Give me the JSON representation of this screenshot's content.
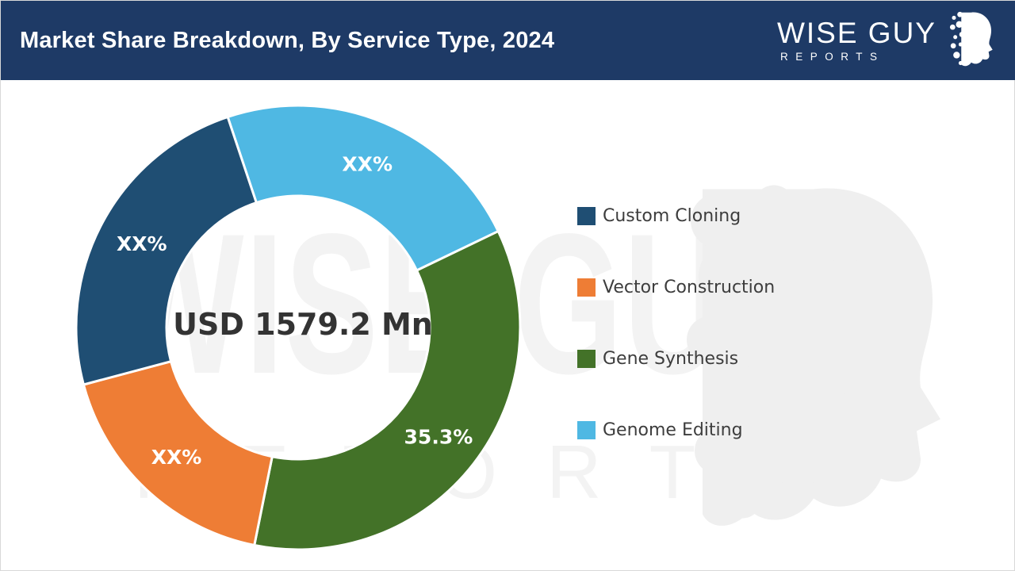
{
  "header": {
    "title": "Market Share Breakdown, By Service Type, 2024",
    "logo": {
      "line1": "WISE GUY",
      "line2": "REPORTS"
    }
  },
  "watermark": {
    "line1": "WISE GUY",
    "line2": "REPORTS"
  },
  "chart_data": {
    "type": "pie",
    "subtype": "donut",
    "title": "Market Share Breakdown, By Service Type, 2024",
    "center_label": "USD 1579.2 Mn",
    "start_angle_deg_clockwise_from_top": -18.5,
    "inner_radius_ratio": 0.59,
    "slices": [
      {
        "label": "Genome Editing",
        "display_label": "XX%",
        "value_pct": 23.0,
        "color": "#4FB8E3"
      },
      {
        "label": "Gene Synthesis",
        "display_label": "35.3%",
        "value_pct": 35.3,
        "color": "#437228"
      },
      {
        "label": "Vector Construction",
        "display_label": "XX%",
        "value_pct": 17.7,
        "color": "#EE7D35"
      },
      {
        "label": "Custom Cloning",
        "display_label": "XX%",
        "value_pct": 24.0,
        "color": "#1F4E73"
      }
    ],
    "legend": [
      {
        "label": "Custom Cloning",
        "color": "#1F4E73"
      },
      {
        "label": "Vector Construction",
        "color": "#EE7D35"
      },
      {
        "label": "Gene Synthesis",
        "color": "#437228"
      },
      {
        "label": "Genome Editing",
        "color": "#4FB8E3"
      }
    ],
    "legend_position": "right"
  },
  "colors": {
    "header_bg": "#1E3A66",
    "watermark": "#f3f3f3",
    "center_text": "#333333",
    "legend_text": "#3d3d3d",
    "slice_gap": "#ffffff"
  }
}
